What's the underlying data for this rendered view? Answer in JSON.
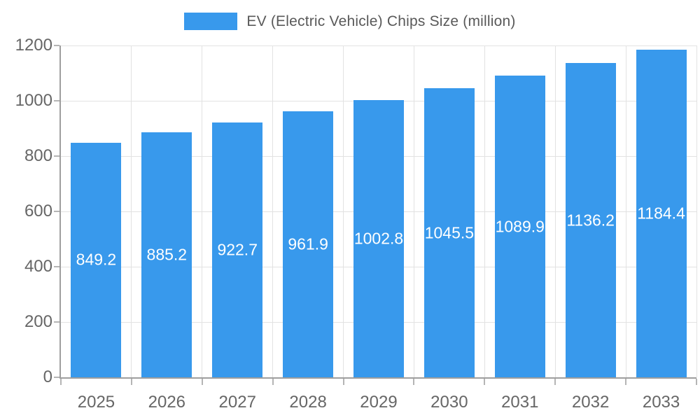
{
  "legend": {
    "series_label": "EV (Electric Vehicle) Chips Size (million)"
  },
  "chart_data": {
    "type": "bar",
    "title": "EV (Electric Vehicle) Chips Size (million)",
    "categories": [
      "2025",
      "2026",
      "2027",
      "2028",
      "2029",
      "2030",
      "2031",
      "2032",
      "2033"
    ],
    "values": [
      849.2,
      885.2,
      922.7,
      961.9,
      1002.8,
      1045.5,
      1089.9,
      1136.2,
      1184.4
    ],
    "xlabel": "",
    "ylabel": "",
    "ylim": [
      0,
      1200
    ],
    "yticks": [
      0,
      200,
      400,
      600,
      800,
      1000,
      1200
    ],
    "grid": "both",
    "legend_position": "top",
    "value_labels": "inside-center",
    "colors": {
      "bar": "#3899EC",
      "axis_line": "#9e9e9e",
      "tick_mark": "#b5b5b5",
      "gridline": "#e2e2e2",
      "tick_text": "#666666",
      "legend_text": "#595959",
      "value_text": "#ffffff",
      "background": "#ffffff"
    }
  }
}
